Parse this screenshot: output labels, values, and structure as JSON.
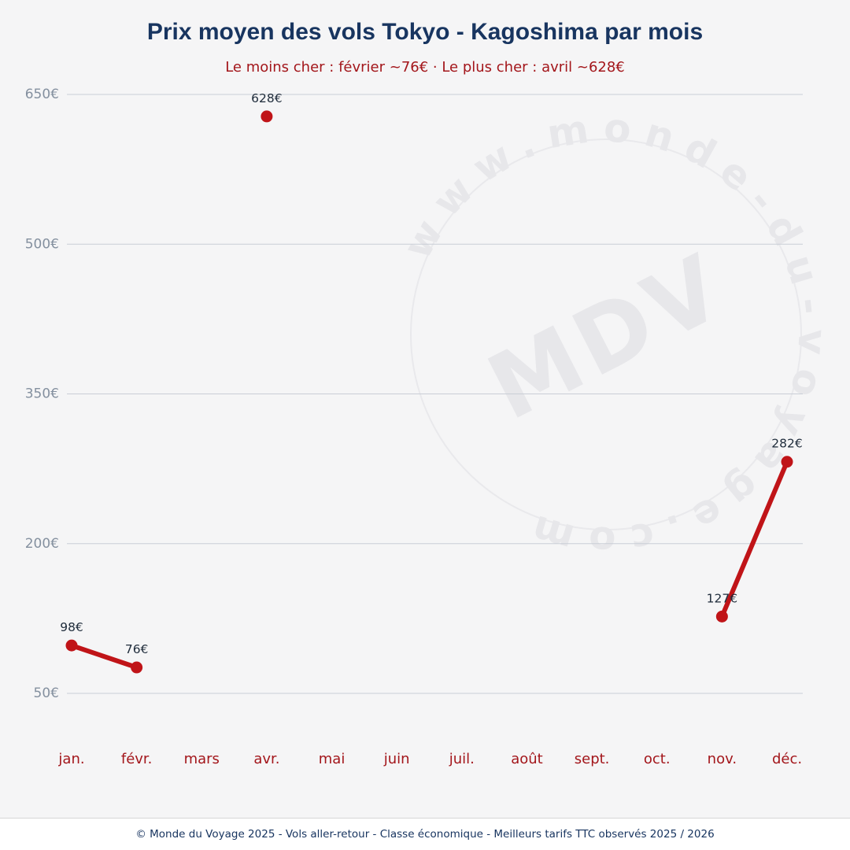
{
  "chart_data": {
    "type": "line",
    "title": "Prix moyen des vols Tokyo - Kagoshima par mois",
    "subtitle": "Le moins cher : février ~76€ · Le plus cher : avril ~628€",
    "categories": [
      "jan.",
      "févr.",
      "mars",
      "avr.",
      "mai",
      "juin",
      "juil.",
      "août",
      "sept.",
      "oct.",
      "nov.",
      "déc."
    ],
    "values": [
      98,
      76,
      null,
      628,
      null,
      null,
      null,
      null,
      null,
      null,
      127,
      282
    ],
    "point_labels": [
      "98€",
      "76€",
      null,
      "628€",
      null,
      null,
      null,
      null,
      null,
      null,
      "127€",
      "282€"
    ],
    "ylabel_ticks": [
      "650€",
      "500€",
      "350€",
      "200€",
      "50€"
    ],
    "ytick_values": [
      650,
      500,
      350,
      200,
      50
    ],
    "ylim": [
      50,
      650
    ],
    "xlabel": "",
    "ylabel": "",
    "grid": true,
    "legend": "none",
    "colors": {
      "series": "#c01418",
      "grid": "#c9ced6",
      "ytick": "#84909f",
      "xtick": "#a3161b",
      "point_label": "#1e2b3a"
    }
  },
  "watermark": {
    "circle_text": "www.monde-du-voyage.com",
    "center_text": "MDV"
  },
  "footer": {
    "text": "© Monde du Voyage 2025 - Vols aller-retour - Classe économique - Meilleurs tarifs TTC observés 2025 / 2026"
  }
}
